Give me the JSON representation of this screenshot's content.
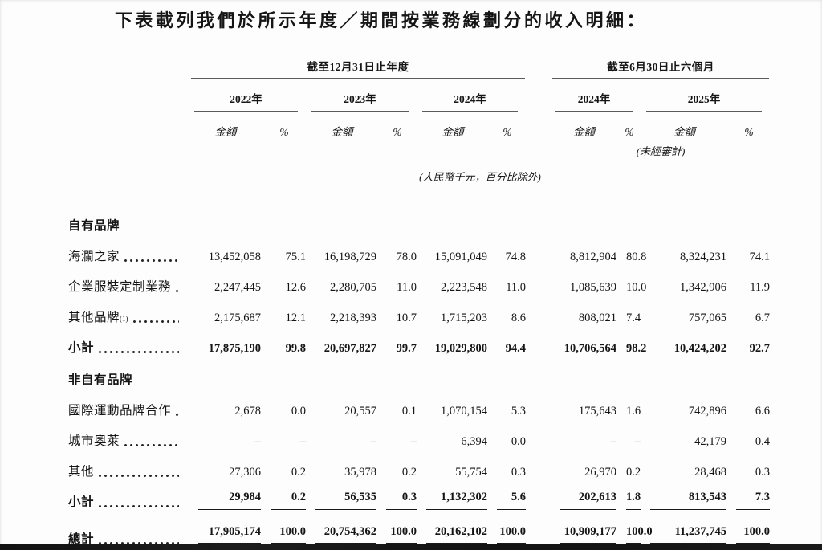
{
  "title": "下表載列我們於所示年度／期間按業務線劃分的收入明細：",
  "table": {
    "col_groups": [
      {
        "title": "截至12月31日止年度",
        "years": [
          "2022年",
          "2023年",
          "2024年"
        ]
      },
      {
        "title": "截至6月30日止六個月",
        "years": [
          "2024年",
          "2025年"
        ]
      }
    ],
    "amount_label": "金額",
    "percent_label": "%",
    "unaudited_note": "(未經審計)",
    "unit_note": "(人民幣千元，百分比除外)",
    "rows": [
      {
        "type": "section",
        "label": "自有品牌"
      },
      {
        "type": "data",
        "label": "海瀾之家",
        "values": [
          "13,452,058",
          "75.1",
          "16,198,729",
          "78.0",
          "15,091,049",
          "74.8",
          "8,812,904",
          "80.8",
          "8,324,231",
          "74.1"
        ]
      },
      {
        "type": "data",
        "label": "企業服裝定制業務",
        "values": [
          "2,247,445",
          "12.6",
          "2,280,705",
          "11.0",
          "2,223,548",
          "11.0",
          "1,085,639",
          "10.0",
          "1,342,906",
          "11.9"
        ]
      },
      {
        "type": "data",
        "label": "其他品牌",
        "sup": "(1)",
        "values": [
          "2,175,687",
          "12.1",
          "2,218,393",
          "10.7",
          "1,715,203",
          "8.6",
          "808,021",
          "7.4",
          "757,065",
          "6.7"
        ]
      },
      {
        "type": "subtotal",
        "label": "小計",
        "rule": "none",
        "values": [
          "17,875,190",
          "99.8",
          "20,697,827",
          "99.7",
          "19,029,800",
          "94.4",
          "10,706,564",
          "98.2",
          "10,424,202",
          "92.7"
        ]
      },
      {
        "type": "section",
        "label": "非自有品牌"
      },
      {
        "type": "data",
        "label": "國際運動品牌合作",
        "values": [
          "2,678",
          "0.0",
          "20,557",
          "0.1",
          "1,070,154",
          "5.3",
          "175,643",
          "1.6",
          "742,896",
          "6.6"
        ]
      },
      {
        "type": "data",
        "label": "城市奧萊",
        "values": [
          "–",
          "–",
          "–",
          "–",
          "6,394",
          "0.0",
          "–",
          "–",
          "42,179",
          "0.4"
        ]
      },
      {
        "type": "data",
        "label": "其他",
        "values": [
          "27,306",
          "0.2",
          "35,978",
          "0.2",
          "55,754",
          "0.3",
          "26,970",
          "0.2",
          "28,468",
          "0.3"
        ]
      },
      {
        "type": "subtotal",
        "label": "小計",
        "rule": "single",
        "values": [
          "29,984",
          "0.2",
          "56,535",
          "0.3",
          "1,132,302",
          "5.6",
          "202,613",
          "1.8",
          "813,543",
          "7.3"
        ]
      },
      {
        "type": "total",
        "label": "總計",
        "rule": "double",
        "values": [
          "17,905,174",
          "100.0",
          "20,754,362",
          "100.0",
          "20,162,102",
          "100.0",
          "10,909,177",
          "100.0",
          "11,237,745",
          "100.0"
        ]
      }
    ]
  }
}
